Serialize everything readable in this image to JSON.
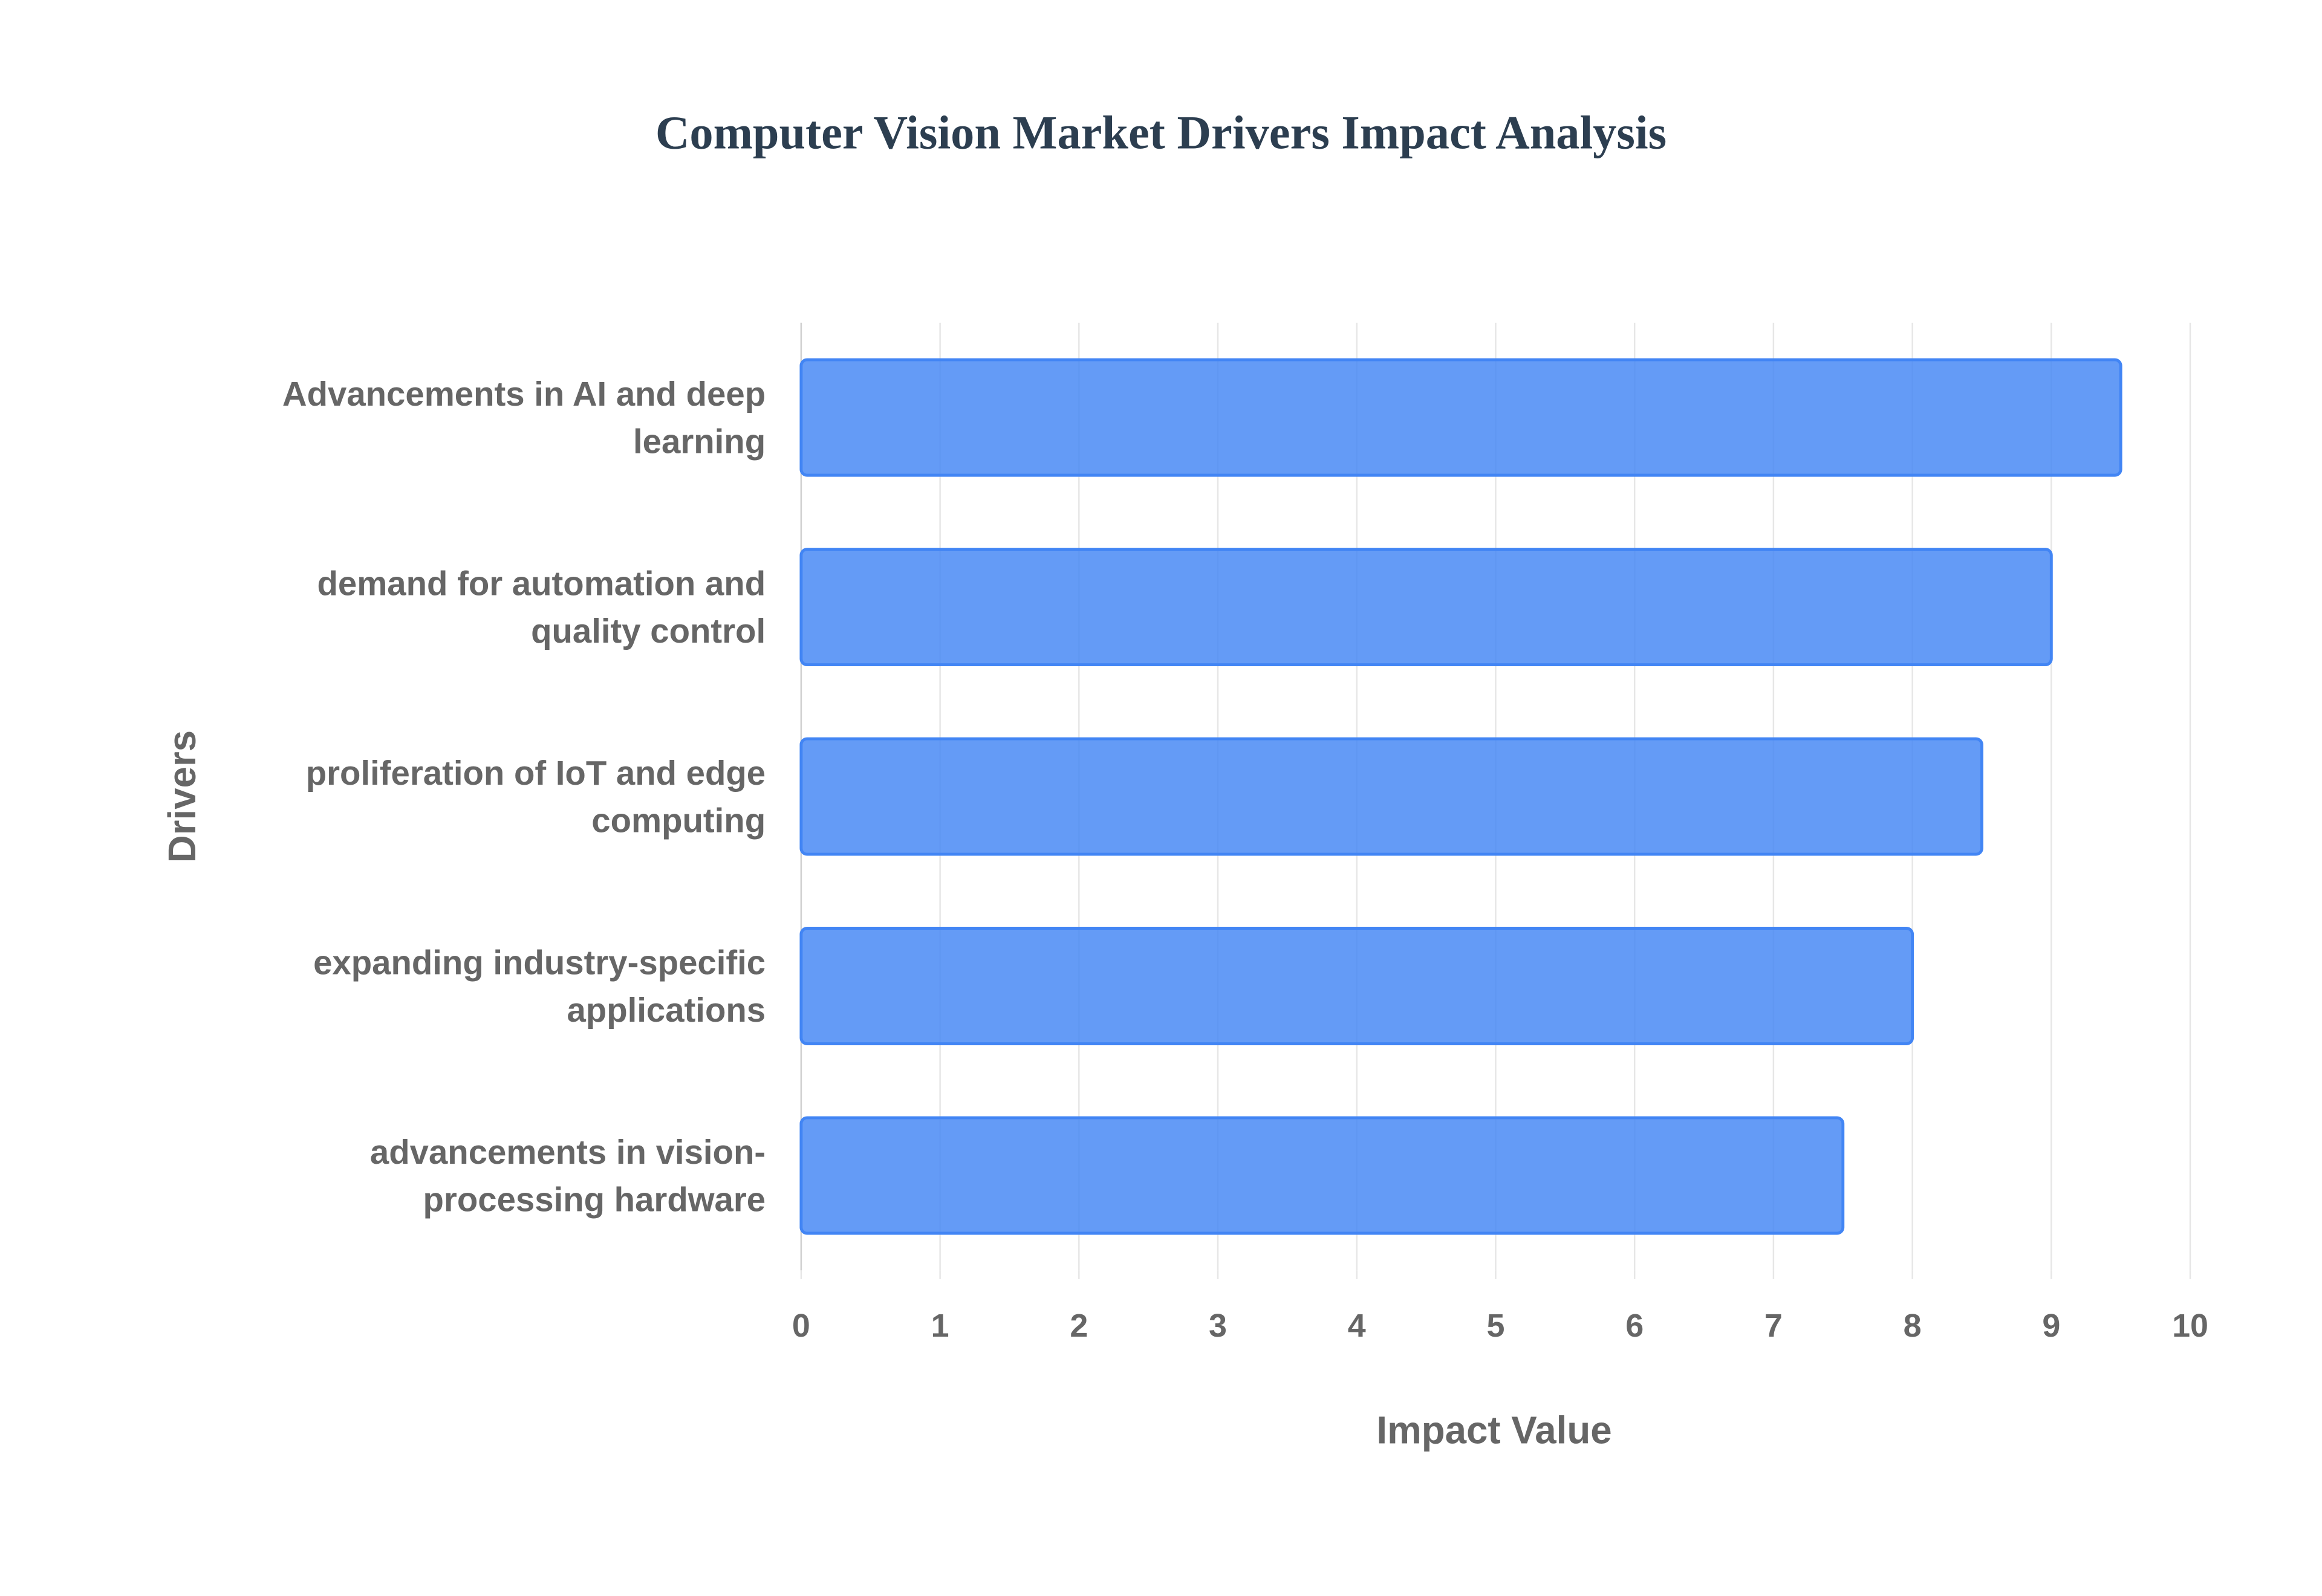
{
  "chart_data": {
    "type": "barh",
    "title": "Computer Vision Market Drivers Impact Analysis",
    "xlabel": "Impact Value",
    "ylabel": "Drivers",
    "categories": [
      "Advancements in AI and deep learning",
      "demand for automation and quality control",
      "proliferation of IoT and edge computing",
      "expanding industry-specific applications",
      "advancements in vision-processing hardware"
    ],
    "values": [
      9.5,
      9,
      8.5,
      8,
      7.5
    ],
    "color": "#4285f4",
    "xlim": [
      0,
      10
    ],
    "xticks": [
      0,
      1,
      2,
      3,
      4,
      5,
      6,
      7,
      8,
      9,
      10
    ],
    "grid": true
  }
}
